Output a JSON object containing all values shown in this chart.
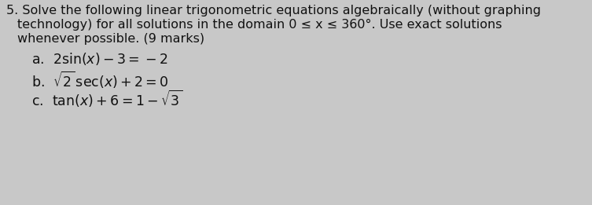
{
  "background_color": "#cccccc",
  "text_color": "#111111",
  "line1": "5. Solve the following linear trigonometric equations algebraically (without graphing",
  "line2": "    technology) for all solutions in the domain 0 ≤ x ≤ 360°. Use exact solutions",
  "line3": "    whenever possible. (9 marks)",
  "font_size_header": 11.5,
  "font_size_eq": 12.5,
  "bg": "#c8c8c8"
}
